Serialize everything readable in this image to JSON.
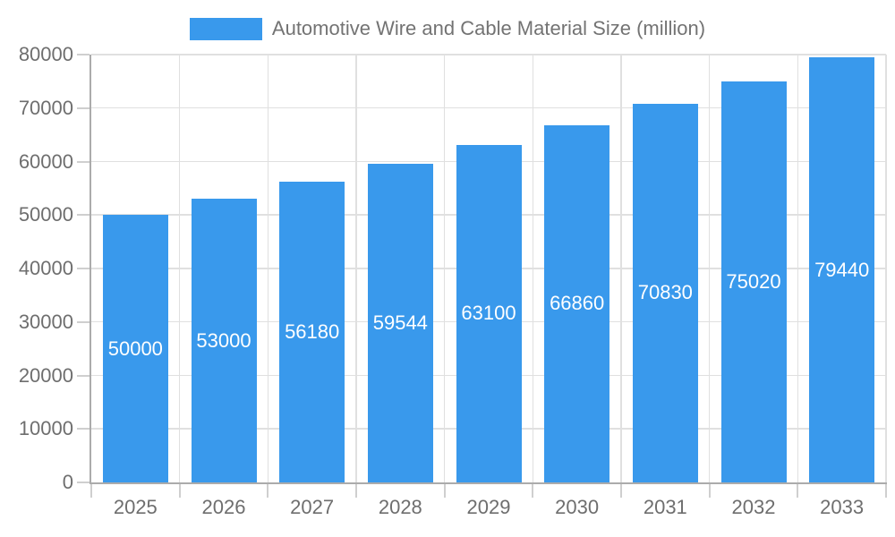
{
  "chart_data": {
    "type": "bar",
    "title": "Automotive Wire and Cable Material Size (million)",
    "categories": [
      "2025",
      "2026",
      "2027",
      "2028",
      "2029",
      "2030",
      "2031",
      "2032",
      "2033"
    ],
    "series": [
      {
        "name": "Automotive Wire and Cable Material Size (million)",
        "values": [
          50000,
          53000,
          56180,
          59544,
          63100,
          66860,
          70830,
          75020,
          79440
        ]
      }
    ],
    "value_labels_position": "inside-center",
    "xlabel": "",
    "ylabel": "",
    "ylim": [
      0,
      80000
    ],
    "y_tick_step": 10000,
    "y_tick_labels": [
      "0",
      "10000",
      "20000",
      "30000",
      "40000",
      "50000",
      "60000",
      "70000",
      "80000"
    ],
    "grid": "horizontal-and-vertical",
    "legend_position": "top-center"
  },
  "legend": {
    "swatch_icon": "legend-color-swatch",
    "label": "Automotive Wire and Cable Material Size (million)"
  },
  "colors": {
    "bar": "#3999ec",
    "bar_label": "#ffffff",
    "axis_line": "#ababab",
    "tick_line": "#cfcfcf",
    "grid_line": "#e0e0e0",
    "axis_text": "#6e6e6e",
    "legend_text": "#737373",
    "background": "#ffffff"
  }
}
